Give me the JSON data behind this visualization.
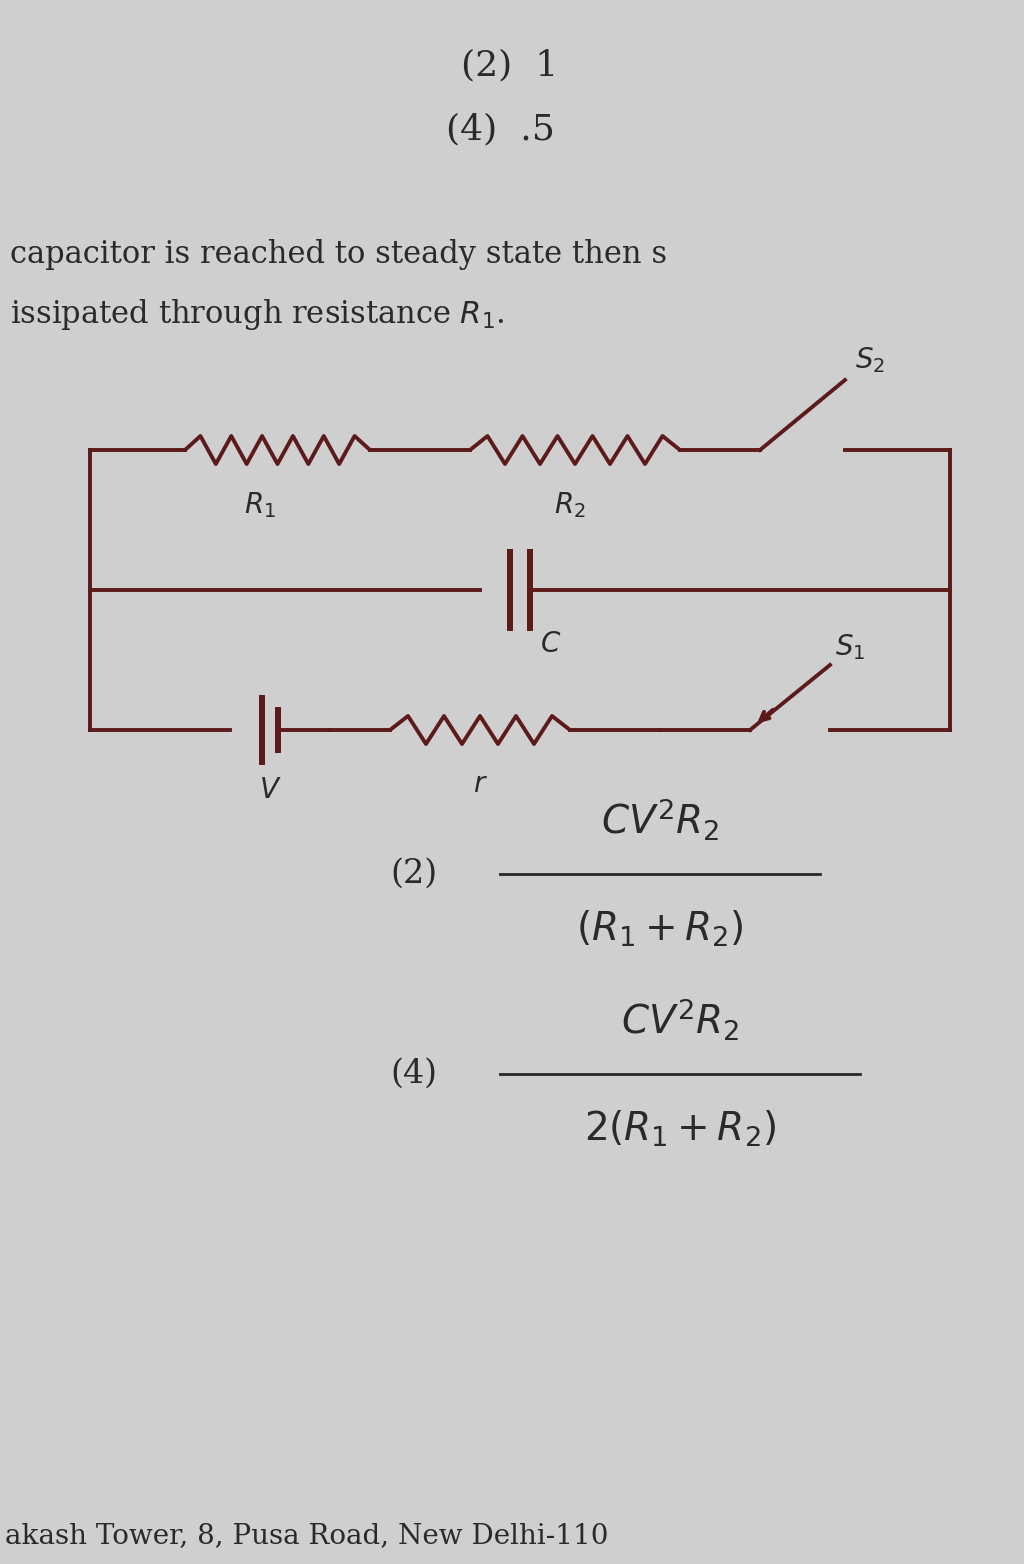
{
  "bg_color": "#d0cfcf",
  "text_color": "#2a2a2a",
  "line_color": "#5c1a1a",
  "fig_width": 10.24,
  "fig_height": 15.64,
  "footer": "akash Tower, 8, Pusa Road, New Delhi-110"
}
